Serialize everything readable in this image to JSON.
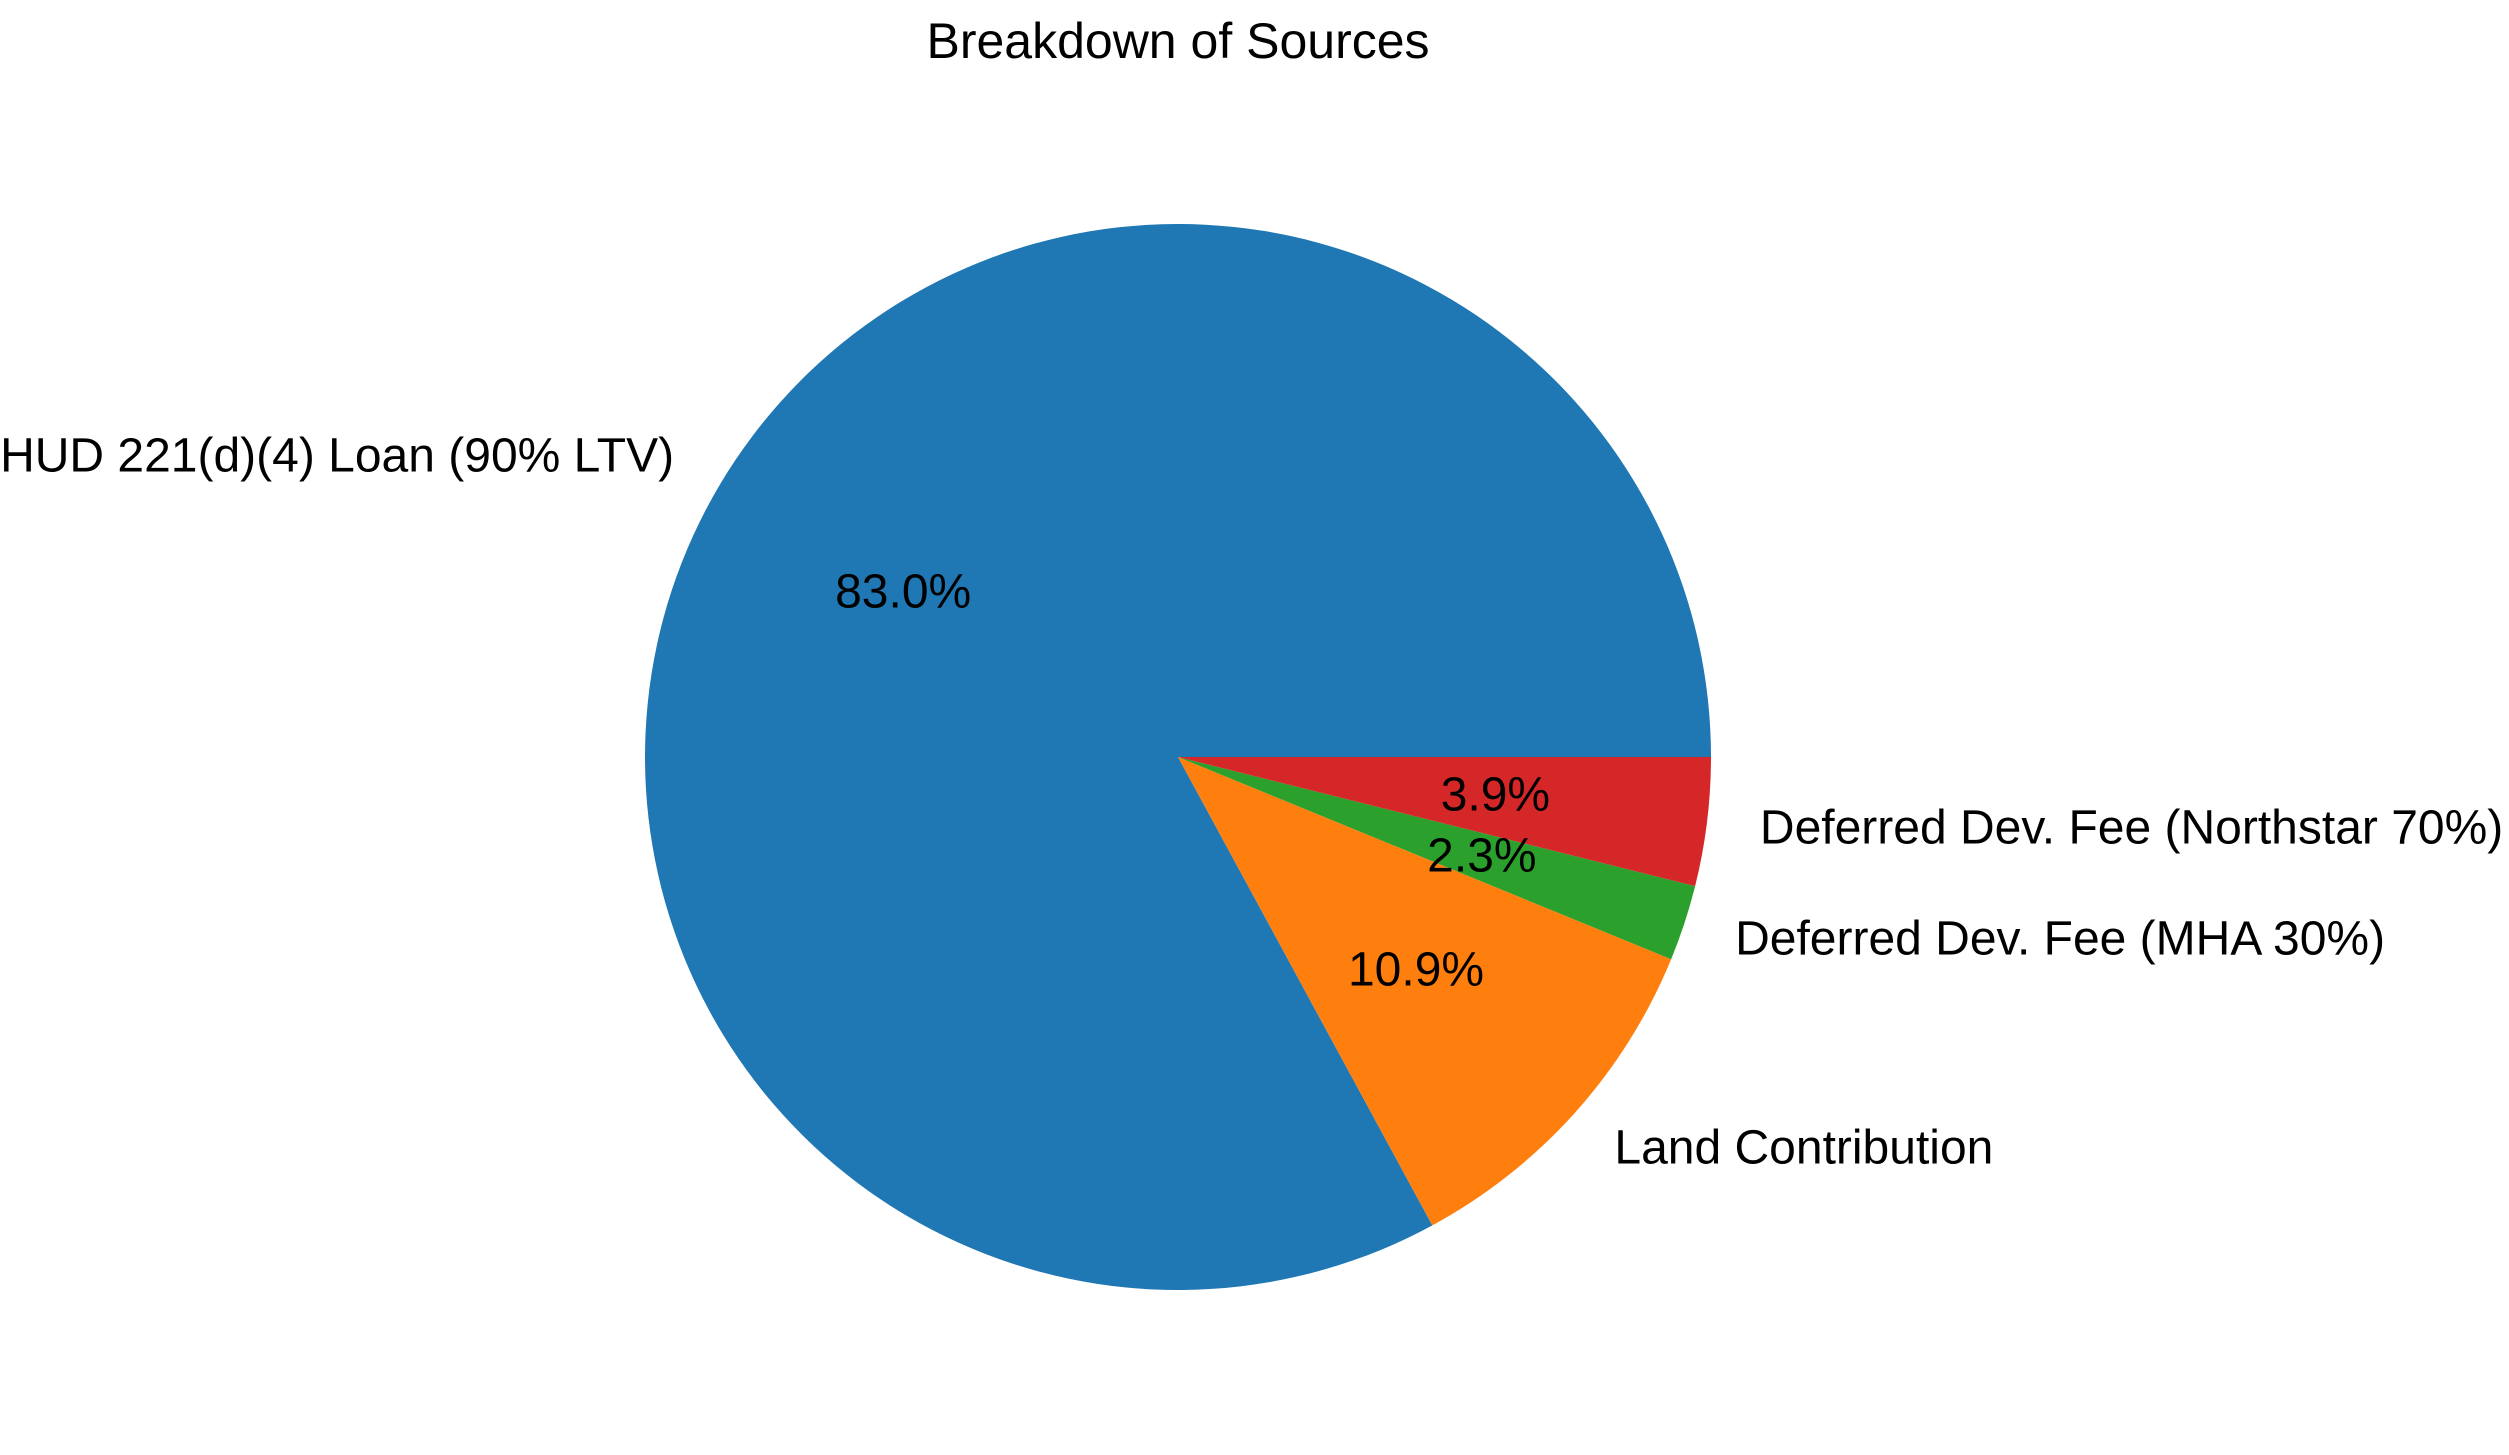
{
  "chart_data": {
    "type": "pie",
    "title": "Breakdown of Sources",
    "legend": "none",
    "grid": "off",
    "start_angle_deg": 0,
    "direction": "counterclockwise",
    "label_distance": 1.1,
    "pct_distance": 0.6,
    "slices": [
      {
        "label": "HUD 221(d)(4) Loan (90% LTV)",
        "value": 83.0,
        "pct_label": "83.0%",
        "color": "#1f77b4"
      },
      {
        "label": "Land Contribution",
        "value": 10.9,
        "pct_label": "10.9%",
        "color": "#ff7f0e"
      },
      {
        "label": "Deferred Dev. Fee (MHA 30%)",
        "value": 2.3,
        "pct_label": "2.3%",
        "color": "#2ca02c"
      },
      {
        "label": "Deferred Dev. Fee (Northstar 70%)",
        "value": 3.9,
        "pct_label": "3.9%",
        "color": "#d62728"
      }
    ]
  }
}
